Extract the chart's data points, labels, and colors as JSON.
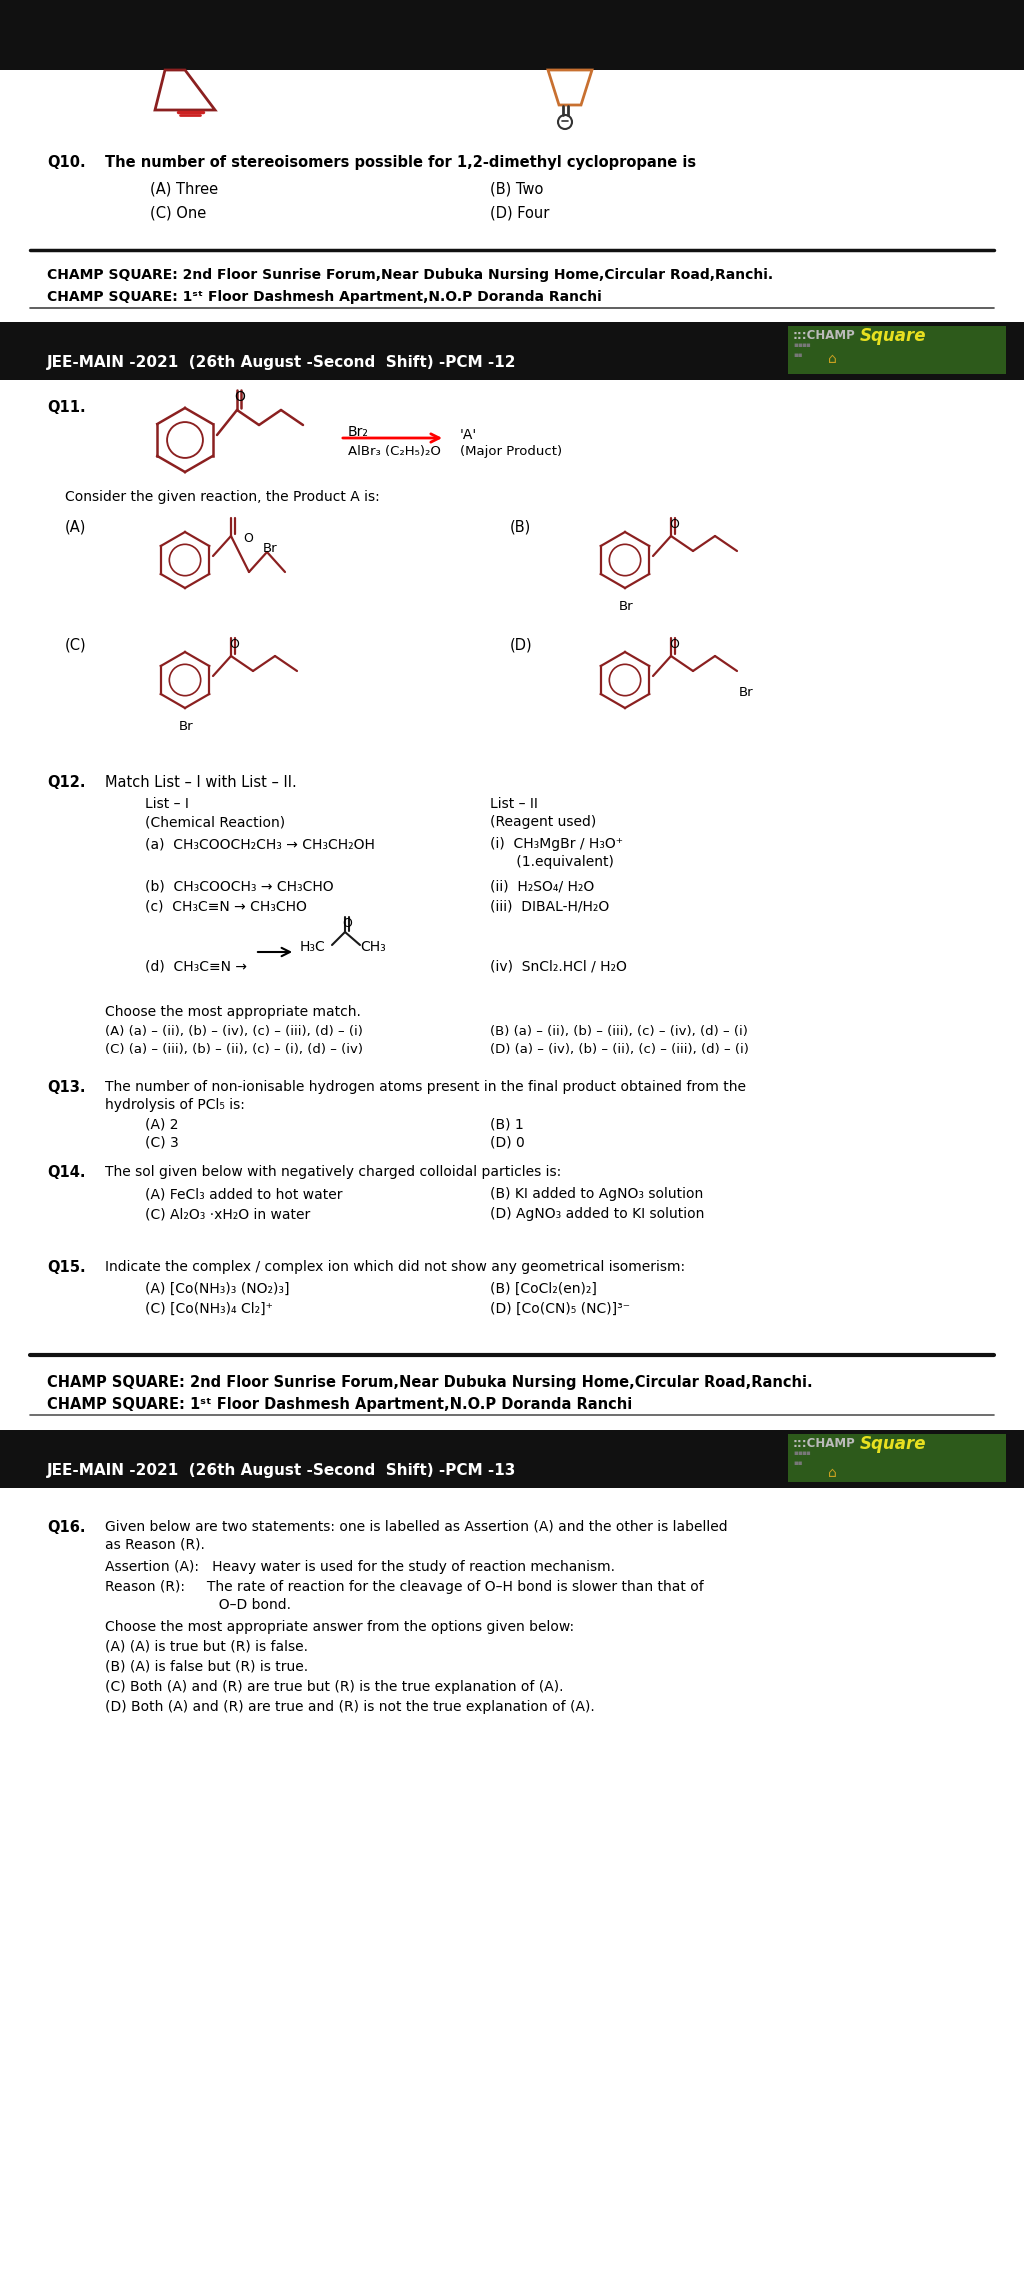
{
  "bg_color": "#ffffff",
  "header_text1": "CHAMP SQUARE: 2nd Floor Sunrise Forum,Near Dubuka Nursing Home,Circular Road,Ranchi.",
  "header_text2": "CHAMP SQUARE: 1ˢᵗ Floor Dashmesh Apartment,N.O.P Doranda Ranchi",
  "jee_title": "JEE-MAIN -2021  (26th August -Second  Shift) -PCM -12",
  "q10_text": "The number of stereoisomers possible for 1,2-dimethyl cyclopropane is",
  "q10_A": "(A) Three",
  "q10_B": "(B) Two",
  "q10_C": "(C) One",
  "q10_D": "(D) Four",
  "q11_consider": "Consider the given reaction, the Product A is:",
  "q11_reagent1": "Br₂",
  "q11_reagent2": "AlBr₃ (C₂H₅)₂O",
  "q11_product": "'A'",
  "q11_major": "(Major Product)",
  "q12_text": "Match List – I with List – II.",
  "q12_listI": "List – I",
  "q12_listII": "List – II",
  "q12_chemreaction": "(Chemical Reaction)",
  "q12_reagentused": "(Reagent used)",
  "q12_a": "(a)  CH₃COOCH₂CH₃ → CH₃CH₂OH",
  "q12_b": "(b)  CH₃COOCH₃ → CH₃CHO",
  "q12_c": "(c)  CH₃C≡N → CH₃CHO",
  "q12_d": "(d)  CH₃C≡N →",
  "q12_i": "(i)  CH₃MgBr / H₃O⁺",
  "q12_i2": "      (1.equivalent)",
  "q12_ii": "(ii)  H₂SO₄/ H₂O",
  "q12_iii": "(iii)  DIBAL-H/H₂O",
  "q12_iv": "(iv)  SnCl₂.HCl / H₂O",
  "q12_choose": "Choose the most appropriate match.",
  "q12_optA": "(A) (a) – (ii), (b) – (iv), (c) – (iii), (d) – (i)",
  "q12_optB": "(B) (a) – (ii), (b) – (iii), (c) – (iv), (d) – (i)",
  "q12_optC": "(C) (a) – (iii), (b) – (ii), (c) – (i), (d) – (iv)",
  "q12_optD": "(D) (a) – (iv), (b) – (ii), (c) – (iii), (d) – (i)",
  "q13_text1": "The number of non-ionisable hydrogen atoms present in the final product obtained from the",
  "q13_text2": "hydrolysis of PCl₅ is:",
  "q13_A": "(A) 2",
  "q13_B": "(B) 1",
  "q13_C": "(C) 3",
  "q13_D": "(D) 0",
  "q14_text": "The sol given below with negatively charged colloidal particles is:",
  "q14_A": "(A) FeCl₃ added to hot water",
  "q14_B": "(B) KI added to AgNO₃ solution",
  "q14_C": "(C) Al₂O₃ ·xH₂O in water",
  "q14_D": "(D) AgNO₃ added to KI solution",
  "q15_text": "Indicate the complex / complex ion which did not show any geometrical isomerism:",
  "q15_A": "(A) [Co(NH₃)₃ (NO₂)₃]",
  "q15_B": "(B) [CoCl₂(en)₂]",
  "q15_C": "(C) [Co(NH₃)₄ Cl₂]⁺",
  "q15_D": "(D) [Co(CN)₅ (NC)]³⁻",
  "footer_text1": "CHAMP SQUARE: 2nd Floor Sunrise Forum,Near Dubuka Nursing Home,Circular Road,Ranchi.",
  "footer_text2": "CHAMP SQUARE: 1ˢᵗ Floor Dashmesh Apartment,N.O.P Doranda Ranchi",
  "jee_title2": "JEE-MAIN -2021  (26th August -Second  Shift) -PCM -13",
  "q16_text1": "Given below are two statements: one is labelled as Assertion (A) and the other is labelled",
  "q16_text2": "as Reason (R).",
  "q16_assertionA": "Assertion (A):   Heavy water is used for the study of reaction mechanism.",
  "q16_reasonR1": "Reason (R):     The rate of reaction for the cleavage of O–H bond is slower than that of",
  "q16_reasonR2": "                          O–D bond.",
  "q16_choose": "Choose the most appropriate answer from the options given below:",
  "q16_optA": "(A) (A) is true but (R) is false.",
  "q16_optB": "(B) (A) is false but (R) is true.",
  "q16_optC": "(C) Both (A) and (R) are true but (R) is the true explanation of (A).",
  "q16_optD": "(D) Both (A) and (R) are true and (R) is not the true explanation of (A)."
}
